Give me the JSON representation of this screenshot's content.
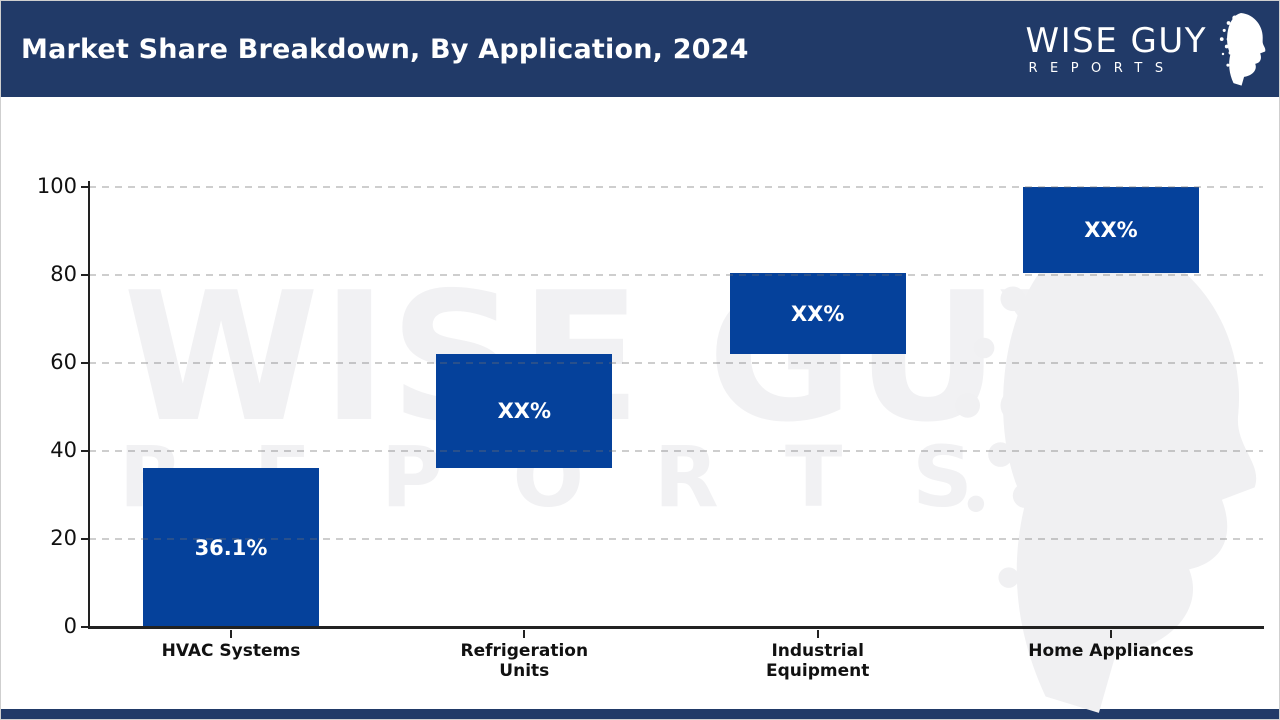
{
  "header": {
    "title": "Market Share Breakdown, By Application, 2024",
    "logo": {
      "line1": "WISE GUY",
      "line2": "REPORTS"
    },
    "background_color": "#213A68",
    "text_color": "#ffffff"
  },
  "watermark": {
    "line1": "WISE GUY",
    "line2": "REPORTS"
  },
  "chart_data": {
    "type": "bar",
    "subtype": "floating-segment-waterfall",
    "title": "Market Share Breakdown, By Application, 2024",
    "xlabel": "",
    "ylabel": "",
    "categories": [
      "HVAC Systems",
      "Refrigeration Units",
      "Industrial Equipment",
      "Home Appliances"
    ],
    "category_lines": [
      [
        "HVAC Systems"
      ],
      [
        "Refrigeration",
        "Units"
      ],
      [
        "Industrial",
        "Equipment"
      ],
      [
        "Home Appliances"
      ]
    ],
    "series": [
      {
        "name": "Market Share (%)",
        "segments": [
          [
            0,
            36.1
          ],
          [
            36.1,
            62
          ],
          [
            62,
            80.5
          ],
          [
            80.5,
            100
          ]
        ]
      }
    ],
    "bar_labels": [
      "36.1%",
      "XX%",
      "XX%",
      "XX%"
    ],
    "ylim": [
      0,
      100
    ],
    "yticks": [
      0,
      20,
      40,
      60,
      80,
      100
    ],
    "grid": "horizontal dashed, drawn over bars",
    "legend": "none",
    "bar_color": "#05419B",
    "bar_label_color": "#ffffff"
  }
}
